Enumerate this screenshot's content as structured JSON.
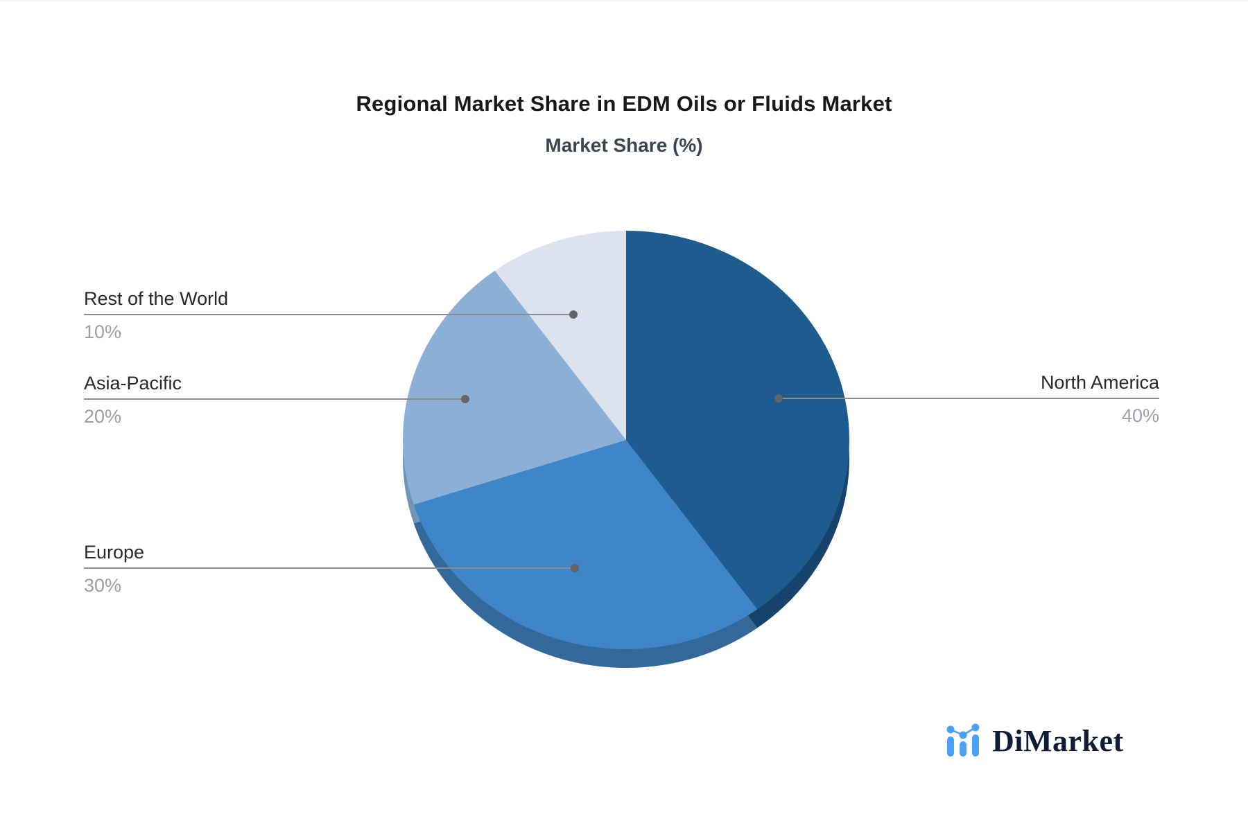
{
  "chart_data": {
    "type": "pie",
    "title": "Regional Market Share in EDM Oils or Fluids Market",
    "subtitle": "Market Share (%)",
    "start_angle_deg": 0,
    "direction": "clockwise",
    "labels_style": "callout",
    "legend_position": "none",
    "slices": [
      {
        "label": "North America",
        "value": 40,
        "pct_label": "40%",
        "color": "#1e5c90",
        "depth_color": "#17446c",
        "callout_side": "right"
      },
      {
        "label": "Europe",
        "value": 30,
        "pct_label": "30%",
        "color": "#3e86c7",
        "depth_color": "#32699a",
        "callout_side": "left"
      },
      {
        "label": "Asia-Pacific",
        "value": 20,
        "pct_label": "20%",
        "color": "#8cb0d5",
        "depth_color": "#7395b5",
        "callout_side": "left"
      },
      {
        "label": "Rest of the World",
        "value": 10,
        "pct_label": "10%",
        "color": "#dce3ee",
        "depth_color": "#bac6d6",
        "callout_side": "left"
      }
    ]
  },
  "branding": {
    "name": "DiMarket",
    "icon": "bar-line-chart-icon",
    "text_color": "#0e1c36",
    "accent_color": "#4aa0f5"
  }
}
